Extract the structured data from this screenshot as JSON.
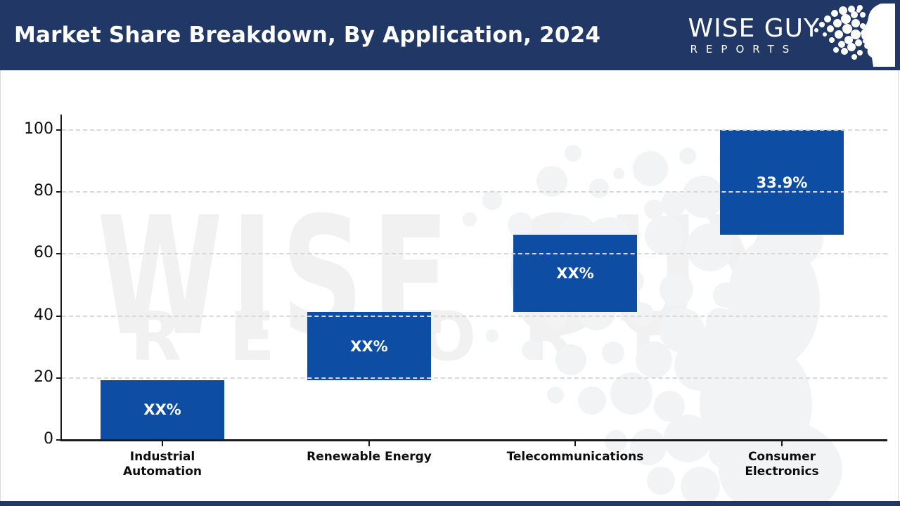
{
  "header": {
    "title": "Market Share Breakdown, By Application, 2024",
    "logo": {
      "line1": "WISE GUY",
      "line2": "REPORTS"
    }
  },
  "watermark": {
    "line1": "WISE GUY",
    "line2": "REPORTS"
  },
  "chart_data": {
    "type": "bar",
    "variant": "waterfall",
    "title": "Market Share Breakdown, By Application, 2024",
    "xlabel": "",
    "ylabel": "",
    "ylim": [
      0,
      104
    ],
    "yticks": [
      0,
      20,
      40,
      60,
      80,
      100
    ],
    "grid": "horizontal-dashed",
    "legend": "none",
    "bar_color": "#0d4da4",
    "value_label_color": "#ffffff",
    "categories": [
      "Industrial Automation",
      "Renewable Energy",
      "Telecommunications",
      "Consumer Electronics"
    ],
    "category_lines": [
      [
        "Industrial",
        "Automation"
      ],
      [
        "Renewable Energy"
      ],
      [
        "Telecommunications"
      ],
      [
        "Consumer",
        "Electronics"
      ]
    ],
    "bars": [
      {
        "category": "Industrial Automation",
        "start": 0,
        "end": 19.3,
        "value_label": "XX%"
      },
      {
        "category": "Renewable Energy",
        "start": 19.3,
        "end": 41.2,
        "value_label": "XX%"
      },
      {
        "category": "Telecommunications",
        "start": 41.2,
        "end": 66.1,
        "value_label": "XX%"
      },
      {
        "category": "Consumer Electronics",
        "start": 66.1,
        "end": 100,
        "value_label": "33.9%",
        "value": 33.9
      }
    ]
  },
  "colors": {
    "header_bg": "#213867",
    "footer_bg": "#213867",
    "bar": "#0d4da4",
    "watermark": "#f1f1f1",
    "gridline": "#d8d8d8",
    "axis": "#1a1a1a"
  }
}
